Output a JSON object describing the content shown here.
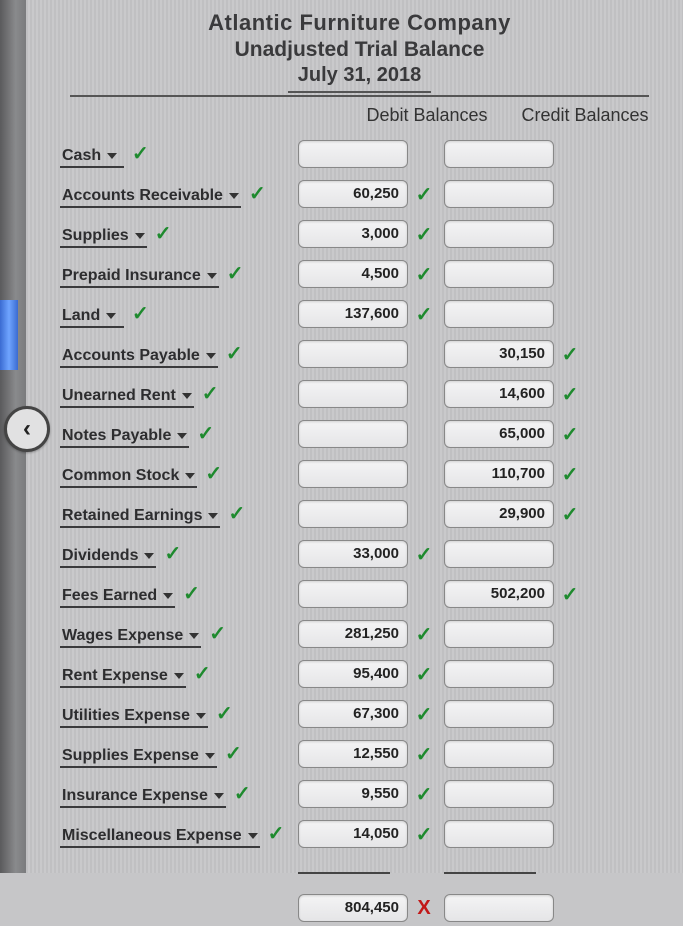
{
  "header": {
    "company": "Atlantic Furniture Company",
    "title": "Unadjusted Trial Balance",
    "date": "July 31, 2018"
  },
  "columns": {
    "debit": "Debit Balances",
    "credit": "Credit Balances"
  },
  "rows": [
    {
      "account": "Cash",
      "acct_ok": true,
      "debit": "",
      "debit_mark": "",
      "credit": "",
      "credit_mark": ""
    },
    {
      "account": "Accounts Receivable",
      "acct_ok": true,
      "debit": "60,250",
      "debit_mark": "ok",
      "credit": "",
      "credit_mark": ""
    },
    {
      "account": "Supplies",
      "acct_ok": true,
      "debit": "3,000",
      "debit_mark": "ok",
      "credit": "",
      "credit_mark": ""
    },
    {
      "account": "Prepaid Insurance",
      "acct_ok": true,
      "debit": "4,500",
      "debit_mark": "ok",
      "credit": "",
      "credit_mark": ""
    },
    {
      "account": "Land",
      "acct_ok": true,
      "debit": "137,600",
      "debit_mark": "ok",
      "credit": "",
      "credit_mark": ""
    },
    {
      "account": "Accounts Payable",
      "acct_ok": true,
      "debit": "",
      "debit_mark": "",
      "credit": "30,150",
      "credit_mark": "ok"
    },
    {
      "account": "Unearned Rent",
      "acct_ok": true,
      "debit": "",
      "debit_mark": "",
      "credit": "14,600",
      "credit_mark": "ok"
    },
    {
      "account": "Notes Payable",
      "acct_ok": true,
      "debit": "",
      "debit_mark": "",
      "credit": "65,000",
      "credit_mark": "ok"
    },
    {
      "account": "Common Stock",
      "acct_ok": true,
      "debit": "",
      "debit_mark": "",
      "credit": "110,700",
      "credit_mark": "ok"
    },
    {
      "account": "Retained Earnings",
      "acct_ok": true,
      "debit": "",
      "debit_mark": "",
      "credit": "29,900",
      "credit_mark": "ok"
    },
    {
      "account": "Dividends",
      "acct_ok": true,
      "debit": "33,000",
      "debit_mark": "ok",
      "credit": "",
      "credit_mark": ""
    },
    {
      "account": "Fees Earned",
      "acct_ok": true,
      "debit": "",
      "debit_mark": "",
      "credit": "502,200",
      "credit_mark": "ok"
    },
    {
      "account": "Wages Expense",
      "acct_ok": true,
      "debit": "281,250",
      "debit_mark": "ok",
      "credit": "",
      "credit_mark": ""
    },
    {
      "account": "Rent Expense",
      "acct_ok": true,
      "debit": "95,400",
      "debit_mark": "ok",
      "credit": "",
      "credit_mark": ""
    },
    {
      "account": "Utilities Expense",
      "acct_ok": true,
      "debit": "67,300",
      "debit_mark": "ok",
      "credit": "",
      "credit_mark": ""
    },
    {
      "account": "Supplies Expense",
      "acct_ok": true,
      "debit": "12,550",
      "debit_mark": "ok",
      "credit": "",
      "credit_mark": ""
    },
    {
      "account": "Insurance Expense",
      "acct_ok": true,
      "debit": "9,550",
      "debit_mark": "ok",
      "credit": "",
      "credit_mark": ""
    },
    {
      "account": "Miscellaneous Expense",
      "acct_ok": true,
      "debit": "14,050",
      "debit_mark": "ok",
      "credit": "",
      "credit_mark": ""
    }
  ],
  "totals": {
    "debit": "804,450",
    "debit_mark": "bad",
    "credit": "",
    "credit_mark": ""
  },
  "marks": {
    "ok": "✓",
    "bad": "X"
  },
  "colors": {
    "bg": "#c6c6c8",
    "ok": "#1e8a2e",
    "bad": "#c21818",
    "border": "#3a3a3c"
  }
}
